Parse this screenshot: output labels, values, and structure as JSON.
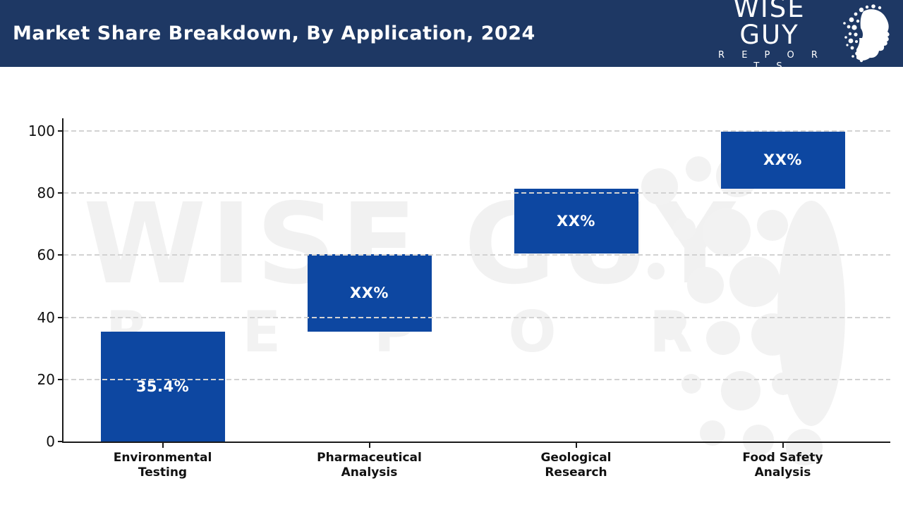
{
  "header": {
    "title": "Market Share Breakdown, By Application, 2024",
    "logo": {
      "line1": "WISE GUY",
      "line2": "R E P O R T S"
    }
  },
  "watermark": {
    "line1": "WISE GUY",
    "line2": "R E P O R T S"
  },
  "chart_data": {
    "type": "bar",
    "subtype": "floating-waterfall",
    "title": "Market Share Breakdown, By Application, 2024",
    "categories": [
      "Environmental\nTesting",
      "Pharmaceutical\nAnalysis",
      "Geological\nResearch",
      "Food Safety\nAnalysis"
    ],
    "segments": [
      {
        "category": "Environmental Testing",
        "start": 0,
        "end": 35.4,
        "label": "35.4%"
      },
      {
        "category": "Pharmaceutical Analysis",
        "start": 35.4,
        "end": 60.4,
        "label": "XX%"
      },
      {
        "category": "Geological Research",
        "start": 60.5,
        "end": 81.5,
        "label": "XX%"
      },
      {
        "category": "Food Safety Analysis",
        "start": 81.5,
        "end": 99.8,
        "label": "XX%"
      }
    ],
    "xlabel": "",
    "ylabel": "",
    "yticks": [
      0,
      20,
      40,
      60,
      80,
      100
    ],
    "ylim": [
      0,
      104
    ],
    "grid": "horizontal-dashed",
    "legend": "none",
    "bar_color": "#0d47a1",
    "bar_label_color": "#ffffff",
    "axis_color": "#1a1a1a",
    "gridline_color": "#d2d2d2"
  },
  "colors": {
    "header_bg": "#1e3864",
    "header_text": "#ffffff",
    "chart_bg": "#ffffff",
    "watermark": "#f1f1f1"
  }
}
